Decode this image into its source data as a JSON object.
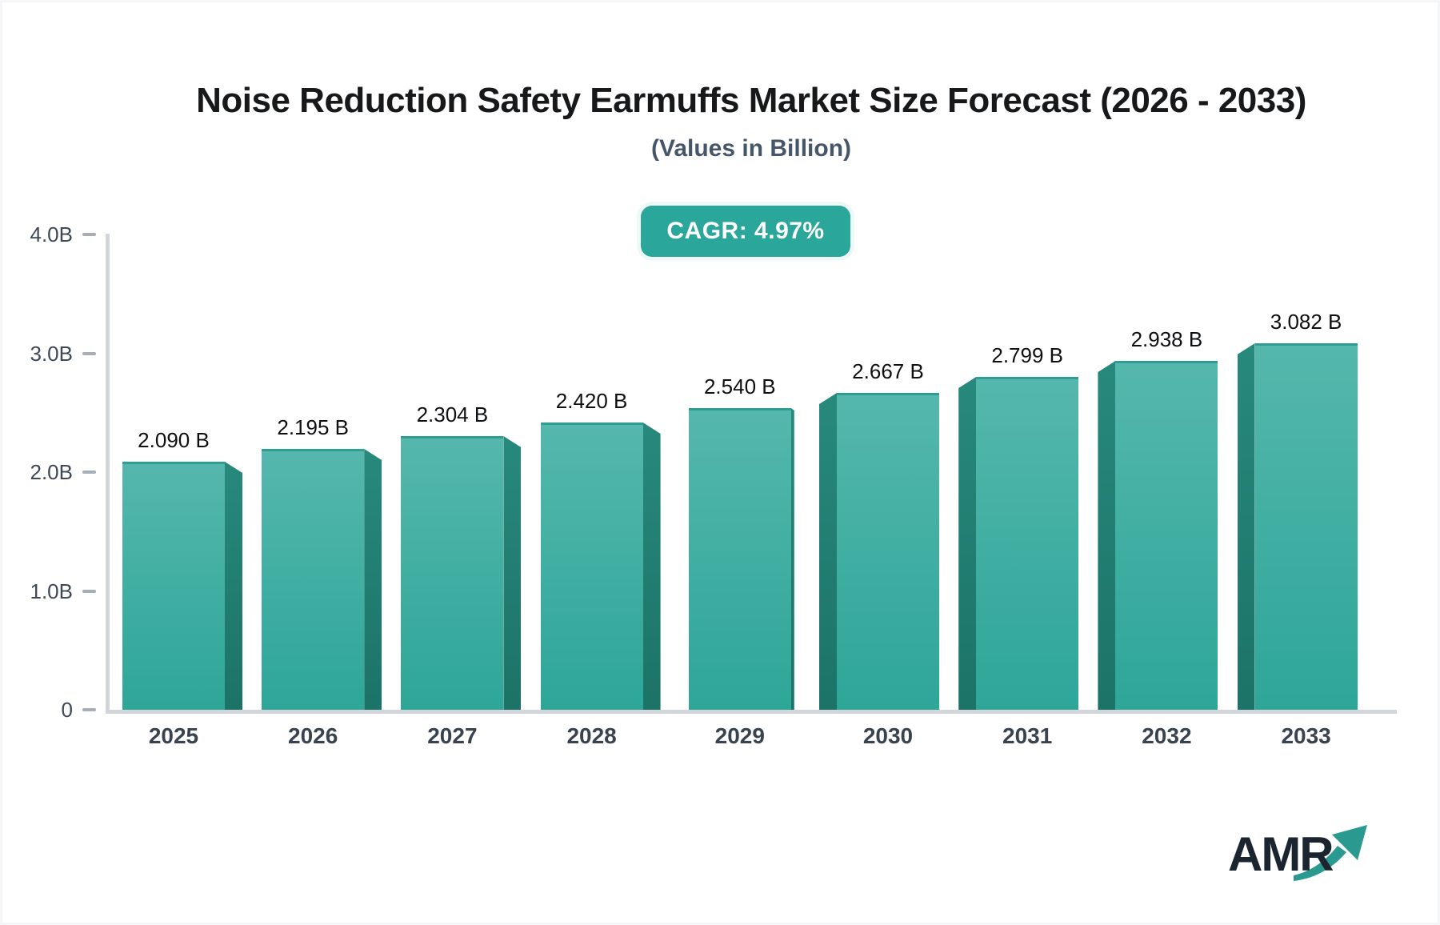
{
  "header": {
    "title": "Noise Reduction Safety Earmuffs Market Size Forecast (2026 - 2033)",
    "subtitle": "(Values in Billion)",
    "cagr_badge": "CAGR: 4.97%"
  },
  "chart_data": {
    "type": "bar",
    "title": "Noise Reduction Safety Earmuffs Market Size Forecast (2026 - 2033)",
    "subtitle": "(Values in Billion)",
    "annotation": "CAGR: 4.97%",
    "categories": [
      "2025",
      "2026",
      "2027",
      "2028",
      "2029",
      "2030",
      "2031",
      "2032",
      "2033"
    ],
    "values": [
      2.09,
      2.195,
      2.304,
      2.42,
      2.54,
      2.667,
      2.799,
      2.938,
      3.082
    ],
    "value_labels": [
      "2.090 B",
      "2.195 B",
      "2.304 B",
      "2.420 B",
      "2.540 B",
      "2.667 B",
      "2.799 B",
      "2.938 B",
      "3.082 B"
    ],
    "xlabel": "",
    "ylabel": "",
    "ylim": [
      0,
      4
    ],
    "yticks": [
      {
        "value": 0,
        "label": "0"
      },
      {
        "value": 1,
        "label": "1.0B"
      },
      {
        "value": 2,
        "label": "2.0B"
      },
      {
        "value": 3,
        "label": "3.0B"
      },
      {
        "value": 4,
        "label": "4.0B"
      }
    ],
    "grid": false,
    "legend": null,
    "style": "3d-perspective-bars"
  },
  "colors": {
    "badge_bg": "#2aa69b",
    "bar_face_top": "#55b7ad",
    "bar_face_bottom": "#2da698",
    "bar_top_edge": "#2f9e92",
    "bar_side_top": "#27897c",
    "bar_side_bottom": "#1c7367",
    "axis": "#d2d6da",
    "tick": "#a7aeb8",
    "logo_arrow": "#2a9a90"
  },
  "branding": {
    "logo_text": "AMR"
  }
}
